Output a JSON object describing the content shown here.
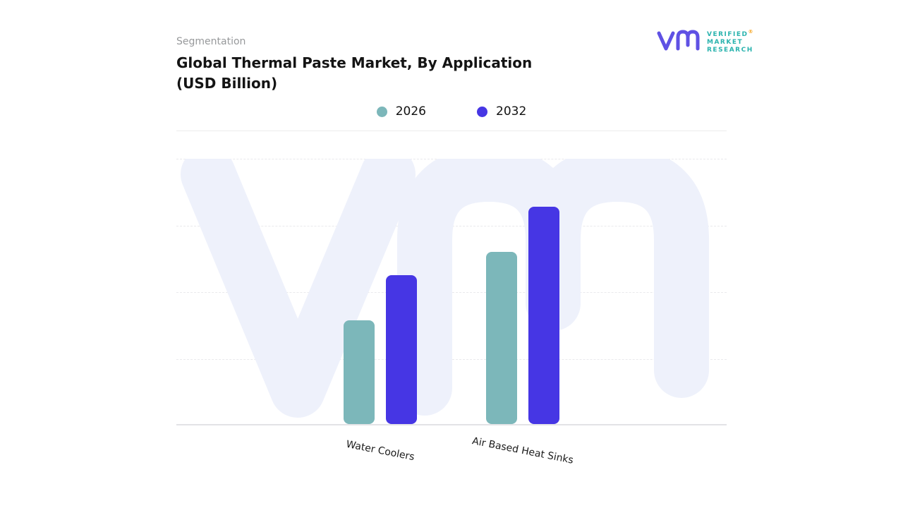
{
  "header": {
    "eyebrow": "Segmentation",
    "title_line1": "Global Thermal Paste Market, By Application",
    "title_line2": "(USD Billion)"
  },
  "legend": [
    {
      "label": "2026",
      "color": "#7cb7ba"
    },
    {
      "label": "2032",
      "color": "#4636e4"
    }
  ],
  "chart_data": {
    "type": "bar",
    "title": "Global Thermal Paste Market, By Application (USD Billion)",
    "categories": [
      "Water Coolers",
      "Air Based Heat Sinks"
    ],
    "series": [
      {
        "name": "2026",
        "color": "#7cb7ba",
        "values": [
          3.9,
          6.5
        ]
      },
      {
        "name": "2032",
        "color": "#4636e4",
        "values": [
          5.6,
          8.2
        ]
      }
    ],
    "xlabel": "",
    "ylabel": "",
    "ylim": [
      0,
      10
    ],
    "grid": "horizontal-dashed",
    "legend_position": "top-center"
  },
  "logo": {
    "lines": [
      "VERIFIED",
      "MARKET",
      "RESEARCH"
    ],
    "registered_mark": "®",
    "mark_color": "#5f51e4",
    "text_color": "#2ab3ae"
  },
  "watermark": {
    "color": "#eef1fb"
  }
}
